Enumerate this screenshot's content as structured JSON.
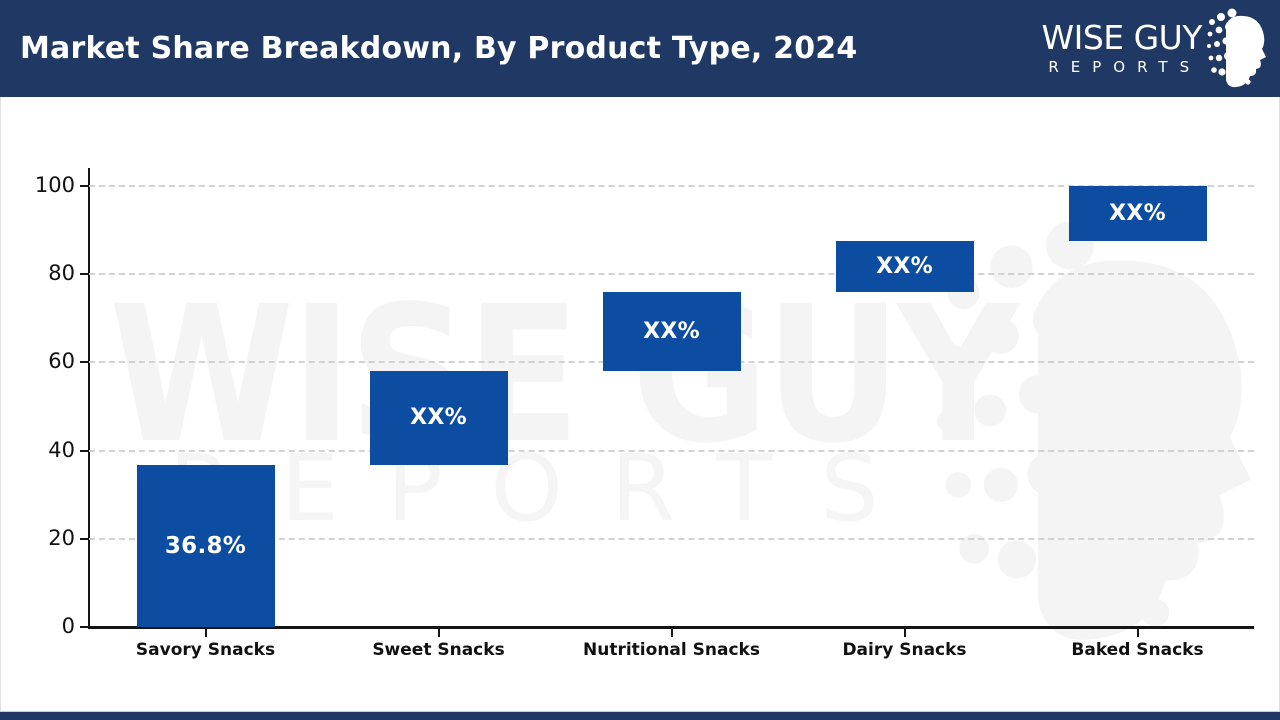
{
  "header": {
    "title": "Market Share Breakdown, By Product Type, 2024",
    "logo": {
      "line1": "WISE GUY",
      "line2": "REPORTS"
    }
  },
  "watermark": {
    "line1": "WISE GUY",
    "line2": "REPORTS"
  },
  "chart_data": {
    "type": "bar",
    "subtype": "waterfall",
    "title": "Market Share Breakdown, By Product Type, 2024",
    "categories": [
      "Savory Snacks",
      "Sweet Snacks",
      "Nutritional Snacks",
      "Dairy Snacks",
      "Baked Snacks"
    ],
    "segments": [
      {
        "category": "Savory Snacks",
        "start": 0,
        "end": 36.8,
        "label": "36.8%"
      },
      {
        "category": "Sweet Snacks",
        "start": 36.8,
        "end": 58,
        "label": "XX%"
      },
      {
        "category": "Nutritional Snacks",
        "start": 58,
        "end": 76,
        "label": "XX%"
      },
      {
        "category": "Dairy Snacks",
        "start": 76,
        "end": 87.5,
        "label": "XX%"
      },
      {
        "category": "Baked Snacks",
        "start": 87.5,
        "end": 100,
        "label": "XX%"
      }
    ],
    "ylim": [
      0,
      100
    ],
    "yticks": [
      0,
      20,
      40,
      60,
      80,
      100
    ],
    "xlabel": "",
    "ylabel": "",
    "grid": "horizontal-dashed",
    "legend": "none",
    "bar_color": "#0c4da2",
    "value_label_color": "#ffffff"
  },
  "colors": {
    "header_bg": "#1f3864",
    "footer_bg": "#1f3864",
    "bar": "#0c4da2",
    "grid": "#d2d2d2",
    "axis": "#151515",
    "watermark": "#f4f4f4"
  }
}
